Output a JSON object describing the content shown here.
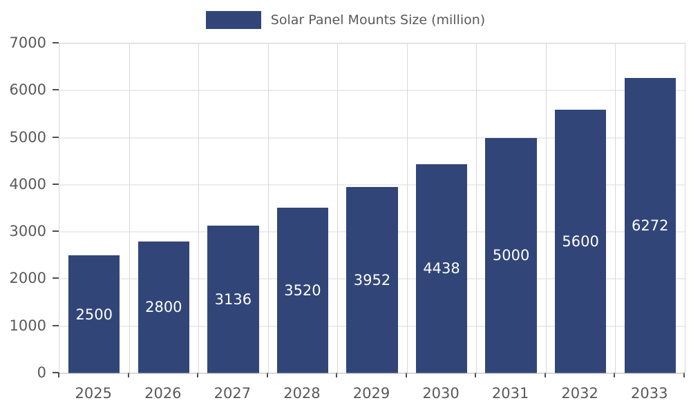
{
  "legend": {
    "label": "Solar Panel Mounts Size (million)"
  },
  "chart_data": {
    "type": "bar",
    "title": "Solar Panel Mounts Size (million)",
    "categories": [
      "2025",
      "2026",
      "2027",
      "2028",
      "2029",
      "2030",
      "2031",
      "2032",
      "2033"
    ],
    "values": [
      2500,
      2800,
      3136,
      3520,
      3952,
      4438,
      5000,
      5600,
      6272
    ],
    "xlabel": "",
    "ylabel": "",
    "ylim": [
      0,
      7000
    ],
    "yticks": [
      0,
      1000,
      2000,
      3000,
      4000,
      5000,
      6000,
      7000
    ],
    "grid": true,
    "legend_position": "top-center",
    "bar_color": "#314578",
    "grid_color": "#d8d8d8",
    "axis_text_color": "#595959",
    "value_label_color": "#ffffff"
  }
}
